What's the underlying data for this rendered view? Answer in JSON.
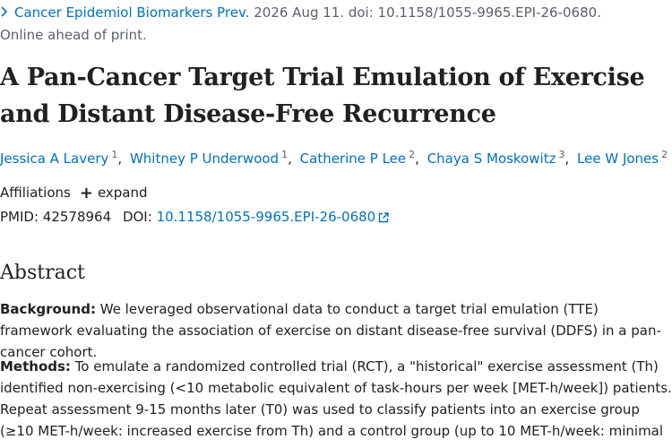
{
  "citation": {
    "journal": "Cancer Epidemiol Biomarkers Prev.",
    "date_doi": " 2026 Aug 11. doi: 10.1158/1055-9965.EPI-26-0680.",
    "status": "Online ahead of print."
  },
  "article": {
    "title": "A Pan-Cancer Target Trial Emulation of Exercise and Distant Disease-Free Recurrence",
    "authors": [
      {
        "name": "Jessica A Lavery",
        "sup": "1"
      },
      {
        "name": "Whitney P Underwood",
        "sup": "1"
      },
      {
        "name": "Catherine P Lee",
        "sup": "2"
      },
      {
        "name": "Chaya S Moskowitz",
        "sup": "3"
      },
      {
        "name": "Lee W Jones",
        "sup": "2"
      }
    ],
    "affiliations_label": "Affiliations",
    "expand_label": "expand",
    "pmid_label": "PMID:",
    "pmid": "42578964",
    "doi_label": "DOI:",
    "doi": "10.1158/1055-9965.EPI-26-0680"
  },
  "abstract": {
    "heading": "Abstract",
    "background_label": "Background:",
    "background_text": " We leveraged observational data to conduct a target trial emulation (TTE) framework evaluating the association of exercise on distant disease-free survival (DDFS) in a pan-cancer cohort.",
    "methods_label": "Methods:",
    "methods_text": " To emulate a randomized controlled trial (RCT), a \"historical\" exercise assessment (Th) identified non-exercising (<10 metabolic equivalent of task-hours per week [MET-h/week]) patients. Repeat assessment 9-15 months later (T0) was used to classify patients into an exercise group (≥10 MET-h/week: increased exercise from Th) and a control group (up to 10 MET-h/week: minimal"
  },
  "icons": {
    "chevron": "chevron-right-icon",
    "plus": "plus-icon",
    "external": "external-link-icon"
  },
  "colors": {
    "link": "#0071bc",
    "text": "#212121",
    "muted": "#5b616b"
  }
}
